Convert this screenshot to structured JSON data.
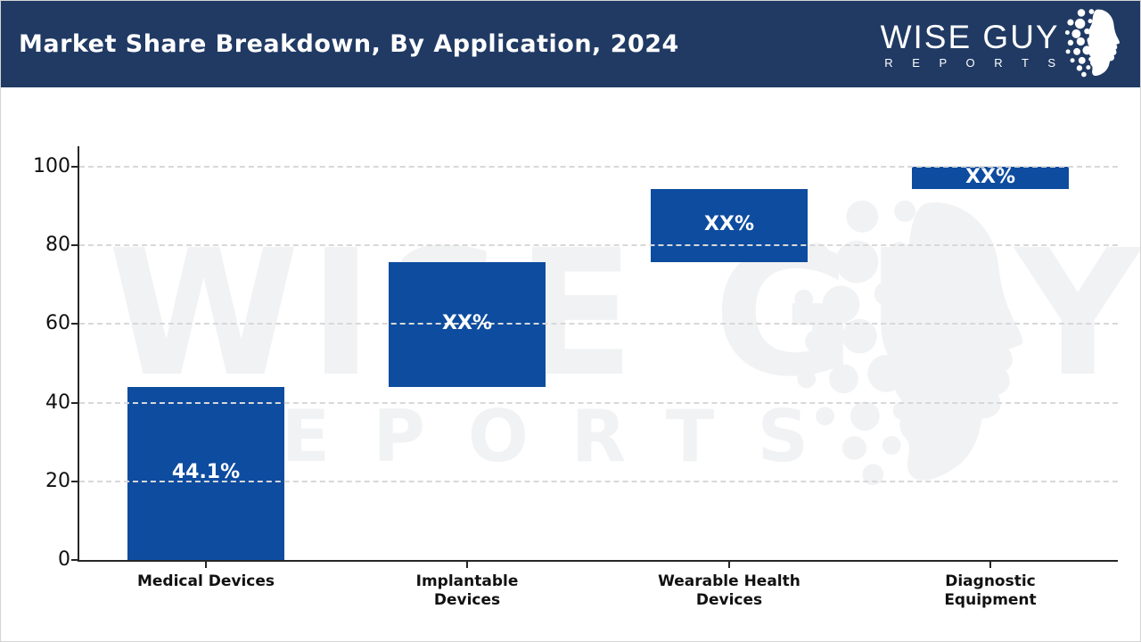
{
  "header": {
    "title": "Market Share Breakdown, By Application, 2024",
    "logo": {
      "brand": "WISE GUY",
      "sub": "R E P O R T S"
    }
  },
  "watermark": {
    "brand": "WISE GUY",
    "sub": "REPORTS"
  },
  "colors": {
    "header_bg": "#203a63",
    "bar": "#0d4c9f",
    "bar_label": "#ffffff",
    "gridline": "#d8d8d8",
    "axis": "#262626",
    "watermark": "#f1f2f4"
  },
  "chart_data": {
    "type": "bar",
    "subtype": "waterfall-stacked-percentage",
    "title": "Market Share Breakdown, By Application, 2024",
    "categories": [
      "Medical Devices",
      "Implantable\nDevices",
      "Wearable Health\nDevices",
      "Diagnostic\nEquipment"
    ],
    "series": [
      {
        "name": "Market share (%)",
        "segments": [
          {
            "category": "Medical Devices",
            "start": 0,
            "end": 44.1,
            "value": 44.1,
            "label": "44.1%"
          },
          {
            "category": "Implantable Devices",
            "start": 44.1,
            "end": 75.7,
            "value": 31.6,
            "label": "XX%"
          },
          {
            "category": "Wearable Health Devices",
            "start": 75.7,
            "end": 94.3,
            "value": 18.6,
            "label": "XX%"
          },
          {
            "category": "Diagnostic Equipment",
            "start": 94.3,
            "end": 100,
            "value": 5.7,
            "label": "XX%"
          }
        ]
      }
    ],
    "xlabel": "",
    "ylabel": "",
    "ylim": [
      0,
      100
    ],
    "yticks": [
      0,
      20,
      40,
      60,
      80,
      100
    ],
    "grid": "horizontal-dashed",
    "legend": "none"
  }
}
